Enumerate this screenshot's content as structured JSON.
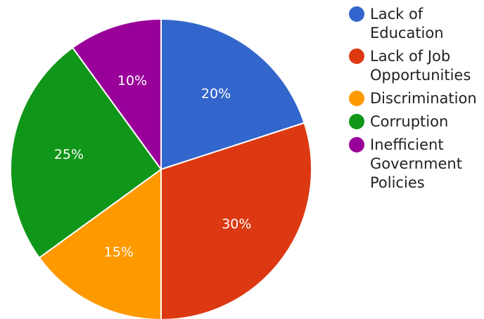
{
  "chart_data": {
    "type": "pie",
    "title": "",
    "legend_position": "right",
    "slices": [
      {
        "name": "Lack of Education",
        "legend_lines": [
          "Lack of",
          "Education"
        ],
        "value": 20,
        "label": "20%",
        "color": "#3366cc"
      },
      {
        "name": "Lack of Job Opportunities",
        "legend_lines": [
          "Lack of Job",
          "Opportunities"
        ],
        "value": 30,
        "label": "30%",
        "color": "#dc3912"
      },
      {
        "name": "Discrimination",
        "legend_lines": [
          "Discrimination"
        ],
        "value": 15,
        "label": "15%",
        "color": "#ff9900"
      },
      {
        "name": "Corruption",
        "legend_lines": [
          "Corruption"
        ],
        "value": 25,
        "label": "25%",
        "color": "#109618"
      },
      {
        "name": "Inefficient Government Policies",
        "legend_lines": [
          "Inefficient",
          "Government",
          "Policies"
        ],
        "value": 10,
        "label": "10%",
        "color": "#990099"
      }
    ]
  }
}
